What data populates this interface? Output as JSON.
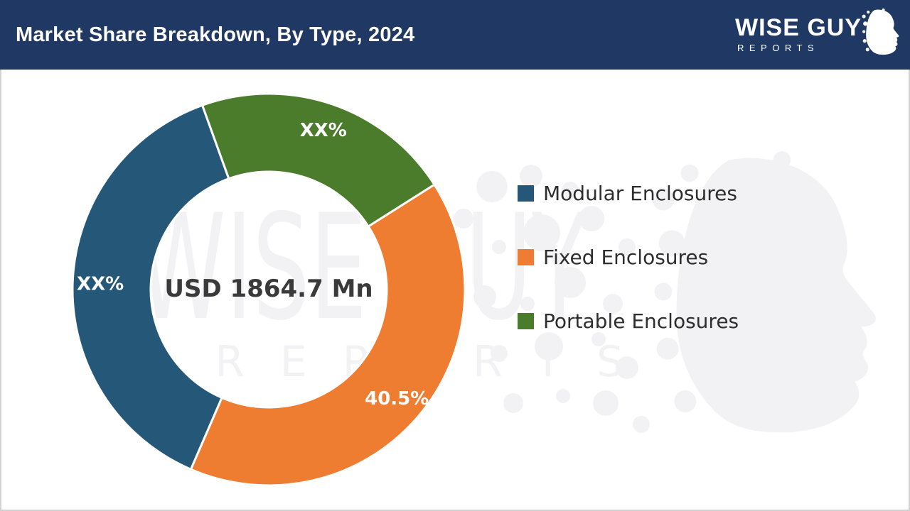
{
  "header": {
    "title": "Market Share Breakdown, By Type, 2024",
    "logo": {
      "line1": "WISE GUY",
      "line2": "REPORTS"
    }
  },
  "watermark": {
    "line1": "WISE GUY",
    "line2": "REPORTS"
  },
  "chart_data": {
    "type": "donut",
    "title": "Market Share Breakdown, By Type, 2024",
    "center_label": "USD 1864.7 Mn",
    "slices": [
      {
        "name": "Modular Enclosures",
        "label": "XX%",
        "value": 38.0,
        "color": "#255878"
      },
      {
        "name": "Fixed Enclosures",
        "label": "40.5%",
        "value": 40.5,
        "color": "#ee7d32"
      },
      {
        "name": "Portable Enclosures",
        "label": "XX%",
        "value": 21.5,
        "color": "#4a7c2c"
      }
    ],
    "start_angle_deg": 109.8,
    "draw_order": [
      2,
      1,
      0
    ],
    "legend_position": "right"
  },
  "colors": {
    "header_bg": "#203864",
    "page_border": "#d2d2d2",
    "watermark": "#f2f2f4",
    "center_text": "#3a3a3a",
    "legend_text": "#2e2e2e",
    "slice_label_text": "#ffffff"
  }
}
